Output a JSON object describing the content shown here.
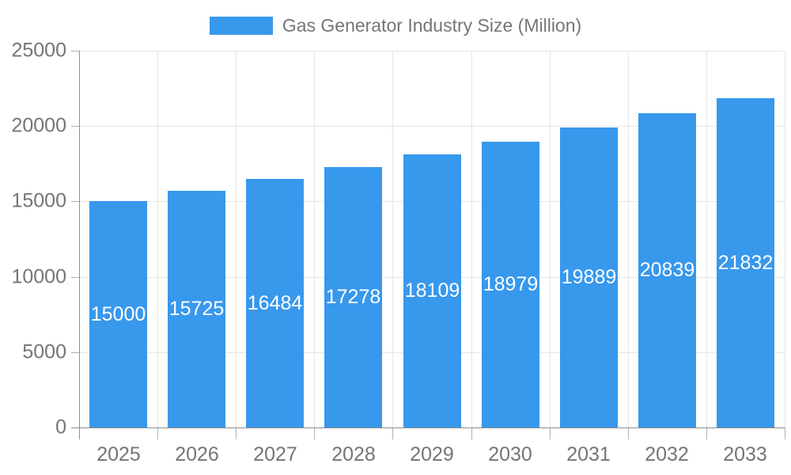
{
  "chart_data": {
    "type": "bar",
    "title": "Gas Generator Industry Size (Million)",
    "categories": [
      "2025",
      "2026",
      "2027",
      "2028",
      "2029",
      "2030",
      "2031",
      "2032",
      "2033"
    ],
    "values": [
      15000,
      15725,
      16484,
      17278,
      18109,
      18979,
      19889,
      20839,
      21832
    ],
    "value_labels": [
      "15000",
      "15725",
      "16484",
      "17278",
      "18109",
      "18979",
      "19889",
      "20839",
      "21832"
    ],
    "xlabel": "",
    "ylabel": "",
    "ylim": [
      0,
      25000
    ],
    "yticks": [
      0,
      5000,
      10000,
      15000,
      20000,
      25000
    ],
    "ytick_labels": [
      "0",
      "5000",
      "10000",
      "15000",
      "20000",
      "25000"
    ],
    "grid": true,
    "legend_position": "top-center",
    "value_labels_position": "inside-center"
  },
  "legend": {
    "label": "Gas Generator Industry Size (Million)"
  },
  "colors": {
    "bar": "#3898EC",
    "grid": "#E6E6E6",
    "axis": "#8E8E8E",
    "tick": "#B0B0B0",
    "label_text": "#757575",
    "value_text": "#FFFFFF",
    "background": "#FFFFFF"
  }
}
